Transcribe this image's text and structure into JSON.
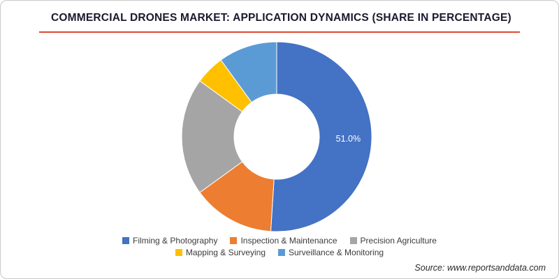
{
  "header": {
    "title": "COMMERCIAL DRONES MARKET: APPLICATION DYNAMICS (SHARE IN PERCENTAGE)"
  },
  "chart_data": {
    "type": "pie",
    "subtype": "donut",
    "title": "COMMERCIAL DRONES MARKET: APPLICATION DYNAMICS (SHARE IN PERCENTAGE)",
    "categories": [
      "Filming & Photography",
      "Inspection & Maintenance",
      "Precision Agriculture",
      "Mapping & Surveying",
      "Surveillance & Monitoring"
    ],
    "values": [
      51.0,
      14.0,
      20.0,
      5.0,
      10.0
    ],
    "colors": [
      "#4472c4",
      "#ed7d31",
      "#a5a5a5",
      "#ffc000",
      "#5b9bd5"
    ],
    "visible_label": "51.0%",
    "labeled_slice_index": 0,
    "legend_position": "bottom",
    "start_angle_deg": 0,
    "direction": "clockwise"
  },
  "footer": {
    "source": "Source: www.reportsanddata.com"
  },
  "style_colors": {
    "title_underline": "#e0492e",
    "data_label_color": "#ffffff"
  }
}
